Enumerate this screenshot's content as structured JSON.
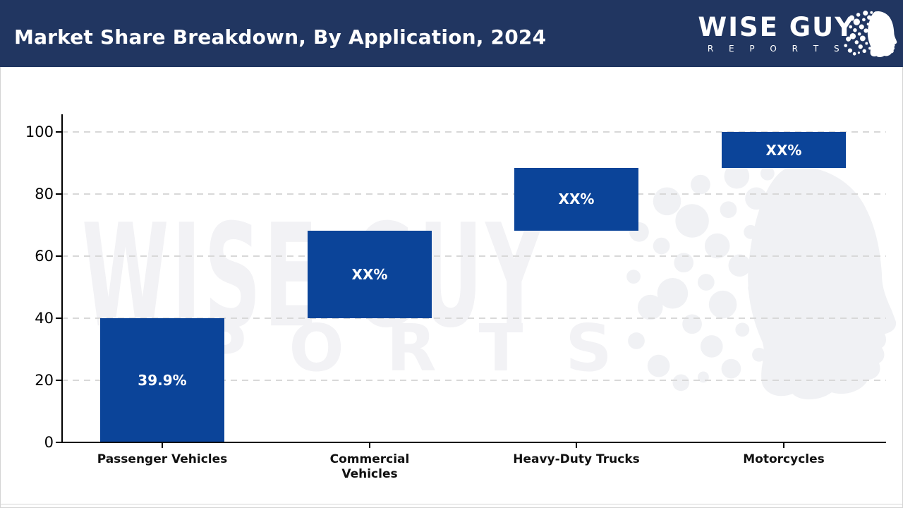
{
  "header": {
    "title": "Market Share Breakdown, By Application, 2024",
    "logo": {
      "line1": "WISE GUY",
      "line2": "R E P O R T S"
    }
  },
  "watermark": {
    "line1": "WISE GUY",
    "line2": "P O R T S"
  },
  "colors": {
    "header_background": "#213661",
    "bar": "#0b4499",
    "bar_label": "#ffffff",
    "grid": "#d8d8d8",
    "axis": "#000000",
    "watermark": "#f2f2f5"
  },
  "chart_data": {
    "type": "bar",
    "subtype": "waterfall",
    "title": "Market Share Breakdown, By Application, 2024",
    "categories": [
      "Passenger Vehicles",
      "Commercial\nVehicles",
      "Heavy-Duty Trucks",
      "Motorcycles"
    ],
    "segments": [
      {
        "category": "Passenger Vehicles",
        "start": 0,
        "end": 39.9,
        "label": "39.9%"
      },
      {
        "category": "Commercial Vehicles",
        "start": 39.9,
        "end": 68.2,
        "label": "XX%"
      },
      {
        "category": "Heavy-Duty Trucks",
        "start": 68.2,
        "end": 88.4,
        "label": "XX%"
      },
      {
        "category": "Motorcycles",
        "start": 88.4,
        "end": 100,
        "label": "XX%"
      }
    ],
    "xlabel": "",
    "ylabel": "",
    "ylim": [
      0,
      105
    ],
    "yticks": [
      0,
      20,
      40,
      60,
      80,
      100
    ],
    "grid": "horizontal dashed",
    "legend": false,
    "bar_color": "#0b4499"
  }
}
